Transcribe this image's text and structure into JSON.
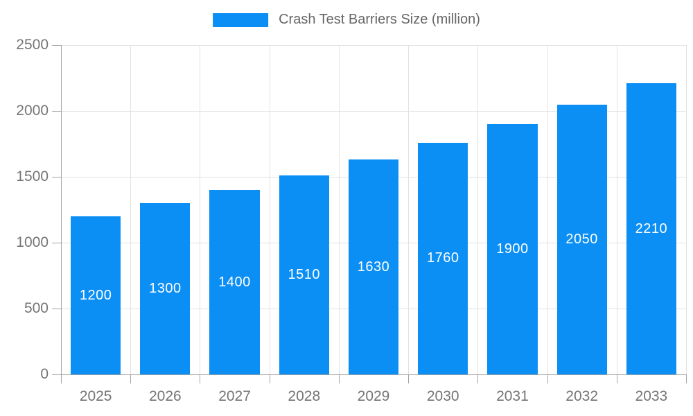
{
  "legend": {
    "label": "Crash Test Barriers Size (million)"
  },
  "colors": {
    "bar": "#0C8FF5",
    "grid": "#e2e2e2",
    "axis": "#a3a3a3",
    "tick_label": "#757575",
    "legend_text": "#666666",
    "value_label": "#ffffff",
    "background": "#ffffff"
  },
  "chart_data": {
    "type": "bar",
    "title": "",
    "series_name": "Crash Test Barriers Size (million)",
    "categories": [
      "2025",
      "2026",
      "2027",
      "2028",
      "2029",
      "2030",
      "2031",
      "2032",
      "2033"
    ],
    "values": [
      1200,
      1300,
      1400,
      1510,
      1630,
      1760,
      1900,
      2050,
      2210
    ],
    "xlabel": "",
    "ylabel": "",
    "ylim": [
      0,
      2500
    ],
    "yticks": [
      0,
      500,
      1000,
      1500,
      2000,
      2500
    ],
    "grid": true,
    "legend_position": "top-center",
    "bar_labels": "inside-center"
  }
}
